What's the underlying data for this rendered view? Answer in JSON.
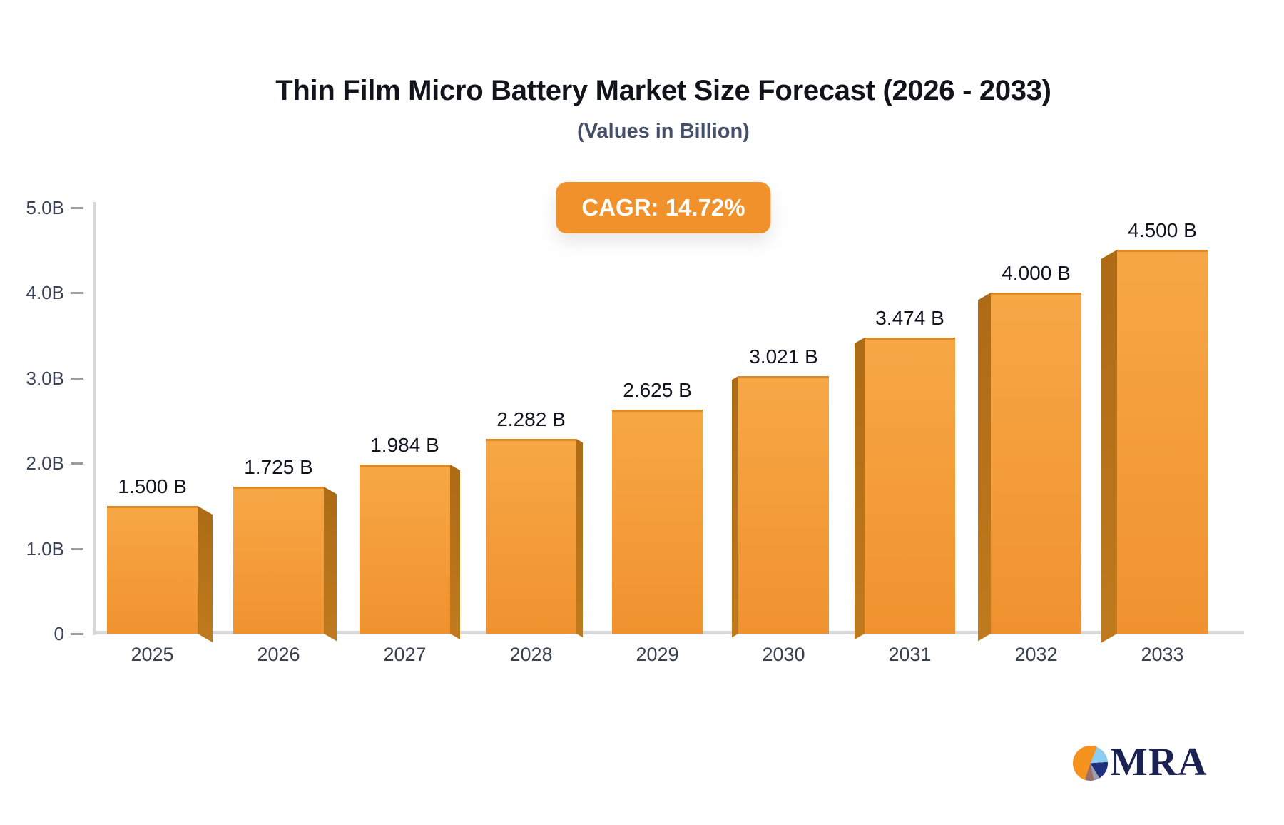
{
  "title": "Thin Film Micro Battery Market Size Forecast (2026 - 2033)",
  "subtitle": "(Values in Billion)",
  "cagr_badge": {
    "label": "CAGR: 14.72%"
  },
  "logo": {
    "text": "MRA"
  },
  "chart_data": {
    "type": "bar",
    "title": "Thin Film Micro Battery Market Size Forecast (2026 - 2033)",
    "subtitle": "(Values in Billion)",
    "categories": [
      "2025",
      "2026",
      "2027",
      "2028",
      "2029",
      "2030",
      "2031",
      "2032",
      "2033"
    ],
    "values": [
      1.5,
      1.725,
      1.984,
      2.282,
      2.625,
      3.021,
      3.474,
      4.0,
      4.5
    ],
    "value_labels": [
      "1.500 B",
      "1.725 B",
      "1.984 B",
      "2.282 B",
      "2.625 B",
      "3.021 B",
      "3.474 B",
      "4.000 B",
      "4.500 B"
    ],
    "xlabel": "",
    "ylabel": "",
    "ylim": [
      0,
      5
    ],
    "yticks": {
      "values": [
        0,
        1,
        2,
        3,
        4,
        5
      ],
      "labels": [
        "0",
        "1.0B",
        "2.0B",
        "3.0B",
        "4.0B",
        "5.0B"
      ]
    },
    "grid": false,
    "legend": false,
    "annotations": [
      "CAGR: 14.72%"
    ],
    "colors": {
      "accent": "#F1912B",
      "bar_front_top": "#F7A745",
      "bar_front_bottom": "#F0922F",
      "bar_side_top": "#AD6B15",
      "bar_side_bottom": "#C07A1E",
      "bar_top_edge": "#DD8B26",
      "axis_line": "#D6D7DA",
      "tick_dash": "#9EA0A6",
      "tick_label": "#394257",
      "value_label": "#10151F",
      "logo_navy": "#1B2150"
    }
  }
}
